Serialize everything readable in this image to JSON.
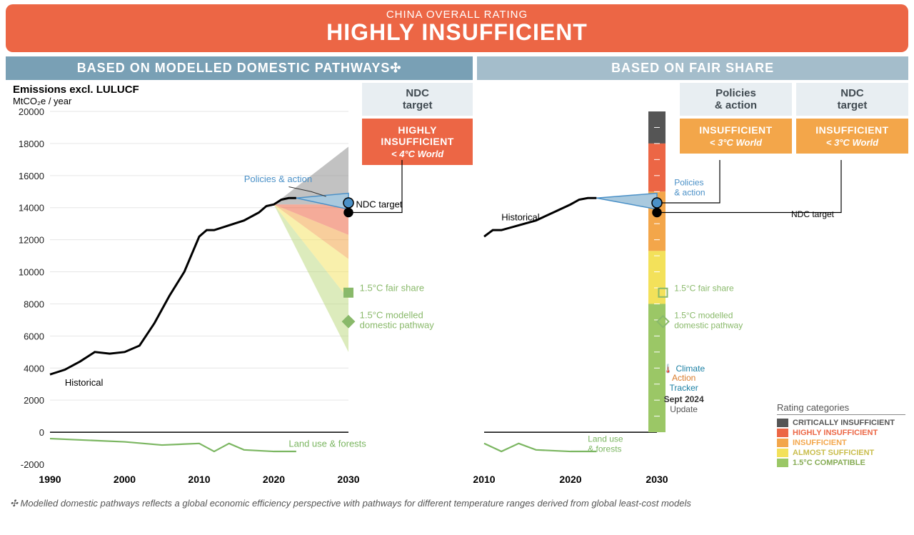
{
  "header": {
    "sub": "CHINA OVERALL RATING",
    "main": "HIGHLY INSUFFICIENT",
    "bg": "#ec6645"
  },
  "panelA": {
    "title": "BASED ON MODELLED DOMESTIC PATHWAYS✣"
  },
  "panelB": {
    "title": "BASED ON FAIR SHARE"
  },
  "ytitle": "Emissions excl. LULUCF",
  "ysub": "MtCO₂e / year",
  "chartA": {
    "ylim": [
      -2000,
      20000
    ],
    "ytick_step": 2000,
    "xlim": [
      1990,
      2030
    ],
    "xtick_step": 10,
    "grid_color": "#e6e6e6",
    "historical_color": "#000000",
    "historical_label": "Historical",
    "historical": [
      [
        1990,
        3600
      ],
      [
        1992,
        3900
      ],
      [
        1994,
        4400
      ],
      [
        1996,
        5000
      ],
      [
        1998,
        4900
      ],
      [
        2000,
        5000
      ],
      [
        2002,
        5400
      ],
      [
        2004,
        6800
      ],
      [
        2006,
        8500
      ],
      [
        2008,
        10000
      ],
      [
        2010,
        12200
      ],
      [
        2011,
        12600
      ],
      [
        2012,
        12600
      ],
      [
        2014,
        12900
      ],
      [
        2016,
        13200
      ],
      [
        2018,
        13700
      ],
      [
        2019,
        14100
      ],
      [
        2020,
        14200
      ],
      [
        2021,
        14500
      ],
      [
        2022,
        14600
      ],
      [
        2023,
        14600
      ]
    ],
    "landuse_color": "#7bb661",
    "landuse_label": "Land use & forests",
    "landuse": [
      [
        1990,
        -400
      ],
      [
        1995,
        -500
      ],
      [
        2000,
        -600
      ],
      [
        2005,
        -800
      ],
      [
        2010,
        -700
      ],
      [
        2012,
        -1200
      ],
      [
        2014,
        -700
      ],
      [
        2016,
        -1100
      ],
      [
        2018,
        -1150
      ],
      [
        2020,
        -1200
      ],
      [
        2023,
        -1200
      ]
    ],
    "policies_color": "#4a90c7",
    "policies_fill": "#a9c9de",
    "policies_label": "Policies & action",
    "policies_range": {
      "x": [
        2023,
        2030
      ],
      "high": [
        14600,
        14900
      ],
      "low": [
        14600,
        13900
      ]
    },
    "ndc_marker_color": "#000",
    "ndc_label": "NDC target",
    "ndc_point": [
      2030,
      13700
    ],
    "policy_point": [
      2030,
      14300
    ],
    "fair15_label": "1.5°C fair share",
    "fair15_color": "#89b96a",
    "fair15_point": [
      2030,
      8700
    ],
    "dom15_label": "1.5°C modelled\ndomestic pathway",
    "dom15_color": "#89b96a",
    "dom15_point": [
      2030,
      6900
    ],
    "fans": [
      {
        "color": "#8f8f8f",
        "op": 0.55,
        "pts": [
          [
            2020,
            14200
          ],
          [
            2030,
            17800
          ],
          [
            2030,
            14200
          ]
        ]
      },
      {
        "color": "#ec6645",
        "op": 0.55,
        "pts": [
          [
            2020,
            14200
          ],
          [
            2030,
            14200
          ],
          [
            2030,
            12300
          ]
        ]
      },
      {
        "color": "#f3a64a",
        "op": 0.55,
        "pts": [
          [
            2020,
            14200
          ],
          [
            2030,
            12300
          ],
          [
            2030,
            10800
          ]
        ]
      },
      {
        "color": "#f3e15a",
        "op": 0.5,
        "pts": [
          [
            2020,
            14200
          ],
          [
            2030,
            10800
          ],
          [
            2030,
            8300
          ]
        ]
      },
      {
        "color": "#b9d77a",
        "op": 0.5,
        "pts": [
          [
            2020,
            14200
          ],
          [
            2030,
            8300
          ],
          [
            2030,
            5000
          ]
        ]
      }
    ],
    "fan_divider_color": "#6aa84f"
  },
  "sideA": {
    "head": "NDC\ntarget",
    "rating": "HIGHLY INSUFFICIENT",
    "world": "< 4°C World",
    "bg": "#ec6645"
  },
  "chartB": {
    "ylim": [
      -2000,
      20000
    ],
    "xlim": [
      2010,
      2030
    ],
    "xtick_step": 10,
    "historical": [
      [
        2010,
        12200
      ],
      [
        2011,
        12600
      ],
      [
        2012,
        12600
      ],
      [
        2014,
        12900
      ],
      [
        2016,
        13200
      ],
      [
        2018,
        13700
      ],
      [
        2020,
        14200
      ],
      [
        2021,
        14500
      ],
      [
        2022,
        14600
      ],
      [
        2023,
        14600
      ]
    ],
    "landuse": [
      [
        2010,
        -700
      ],
      [
        2012,
        -1200
      ],
      [
        2014,
        -700
      ],
      [
        2016,
        -1100
      ],
      [
        2018,
        -1150
      ],
      [
        2020,
        -1200
      ],
      [
        2023,
        -1200
      ]
    ],
    "policies_range": {
      "x": [
        2023,
        2030
      ],
      "high": [
        14600,
        14900
      ],
      "low": [
        14600,
        13900
      ]
    },
    "policy_point": [
      2030,
      14300
    ],
    "ndc_point": [
      2030,
      13700
    ],
    "bar_x": 2030,
    "bar_segments": [
      {
        "from": 18000,
        "to": 20000,
        "color": "#555555"
      },
      {
        "from": 15000,
        "to": 18000,
        "color": "#ec6645"
      },
      {
        "from": 11300,
        "to": 15000,
        "color": "#f3a64a"
      },
      {
        "from": 8000,
        "to": 11300,
        "color": "#f3e15a"
      },
      {
        "from": 0,
        "to": 8000,
        "color": "#9bc766"
      }
    ],
    "fair15_point": [
      2030.7,
      8700
    ],
    "dom15_point": [
      2030.7,
      6900
    ],
    "labels": {
      "historical": "Historical",
      "landuse": "Land use\n& forests",
      "policies": "Policies\n& action",
      "ndc": "NDC target",
      "fair": "1.5°C fair share",
      "dom": "1.5°C modelled\ndomestic pathway"
    }
  },
  "sideB": {
    "cards": [
      {
        "head": "Policies\n& action",
        "rating": "INSUFFICIENT",
        "world": "< 3°C World",
        "bg": "#f3a64a"
      },
      {
        "head": "NDC\ntarget",
        "rating": "INSUFFICIENT",
        "world": "< 3°C World",
        "bg": "#f3a64a"
      }
    ]
  },
  "legend": {
    "title": "Rating categories",
    "items": [
      {
        "label": "CRITICALLY INSUFFICIENT",
        "color": "#555555",
        "txt": "#555555"
      },
      {
        "label": "HIGHLY INSUFFICIENT",
        "color": "#ec6645",
        "txt": "#ec6645"
      },
      {
        "label": "INSUFFICIENT",
        "color": "#f3a64a",
        "txt": "#f3a64a"
      },
      {
        "label": "ALMOST SUFFICIENT",
        "color": "#f3e15a",
        "txt": "#c9bd4c"
      },
      {
        "label": "1.5°C COMPATIBLE",
        "color": "#9bc766",
        "txt": "#85ab53"
      }
    ]
  },
  "tracker": {
    "line1": "Climate",
    "line2": "Action",
    "line3": "Tracker",
    "date": "Sept 2024",
    "update": "Update"
  },
  "footnote": "✣  Modelled domestic pathways reflects a global economic efficiency perspective with pathways for different temperature ranges derived from global least-cost models"
}
